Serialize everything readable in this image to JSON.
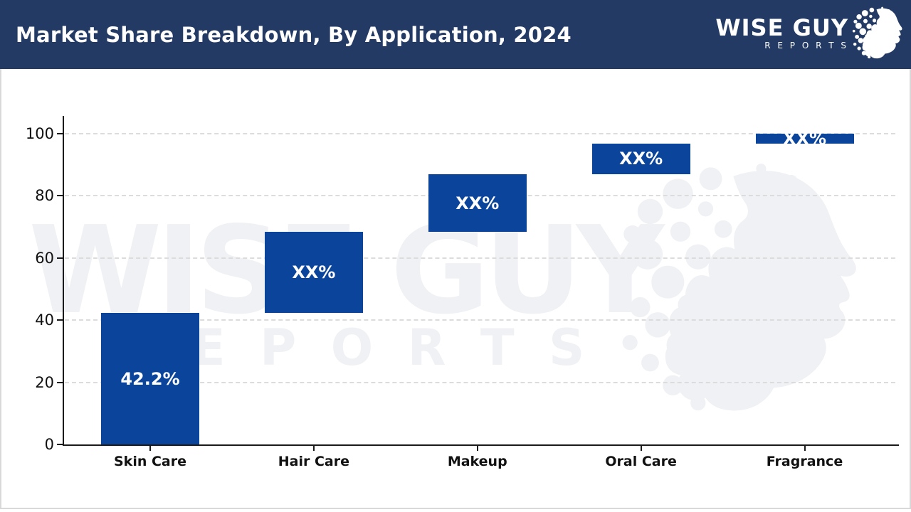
{
  "header": {
    "title": "Market Share Breakdown, By Application, 2024"
  },
  "logo": {
    "name_line": "WISE GUY",
    "sub_line": "R E P O R T S"
  },
  "watermark": {
    "name_line": "WISE GUY",
    "sub_line": "R E P O R T S"
  },
  "chart_data": {
    "type": "bar",
    "variant": "waterfall",
    "title": "Market Share Breakdown, By Application, 2024",
    "xlabel": "",
    "ylabel": "",
    "categories": [
      "Skin Care",
      "Hair Care",
      "Makeup",
      "Oral Care",
      "Fragrance"
    ],
    "segments": [
      {
        "category": "Skin Care",
        "start": 0,
        "end": 42.2,
        "label": "42.2%"
      },
      {
        "category": "Hair Care",
        "start": 42.2,
        "end": 68.3,
        "label": "XX%"
      },
      {
        "category": "Makeup",
        "start": 68.3,
        "end": 86.8,
        "label": "XX%"
      },
      {
        "category": "Oral Care",
        "start": 86.8,
        "end": 96.8,
        "label": "XX%"
      },
      {
        "category": "Fragrance",
        "start": 96.8,
        "end": 100,
        "label": "XX%"
      }
    ],
    "yticks": [
      0,
      20,
      40,
      60,
      80,
      100
    ],
    "ylim": [
      0,
      105.7
    ],
    "grid": {
      "show": true,
      "style": "dashed",
      "axis": "y"
    },
    "legend": "none"
  },
  "colors": {
    "header_bg": "#233A64",
    "title_text": "#FFFFFF",
    "bar": "#0A459B",
    "bar_label": "#FFFFFF",
    "grid": "#DCDCDC",
    "axis": "#1A1A1A",
    "tick_label": "#111111",
    "watermark": "#F0F1F4",
    "frame_border": "#D9D9D9"
  }
}
